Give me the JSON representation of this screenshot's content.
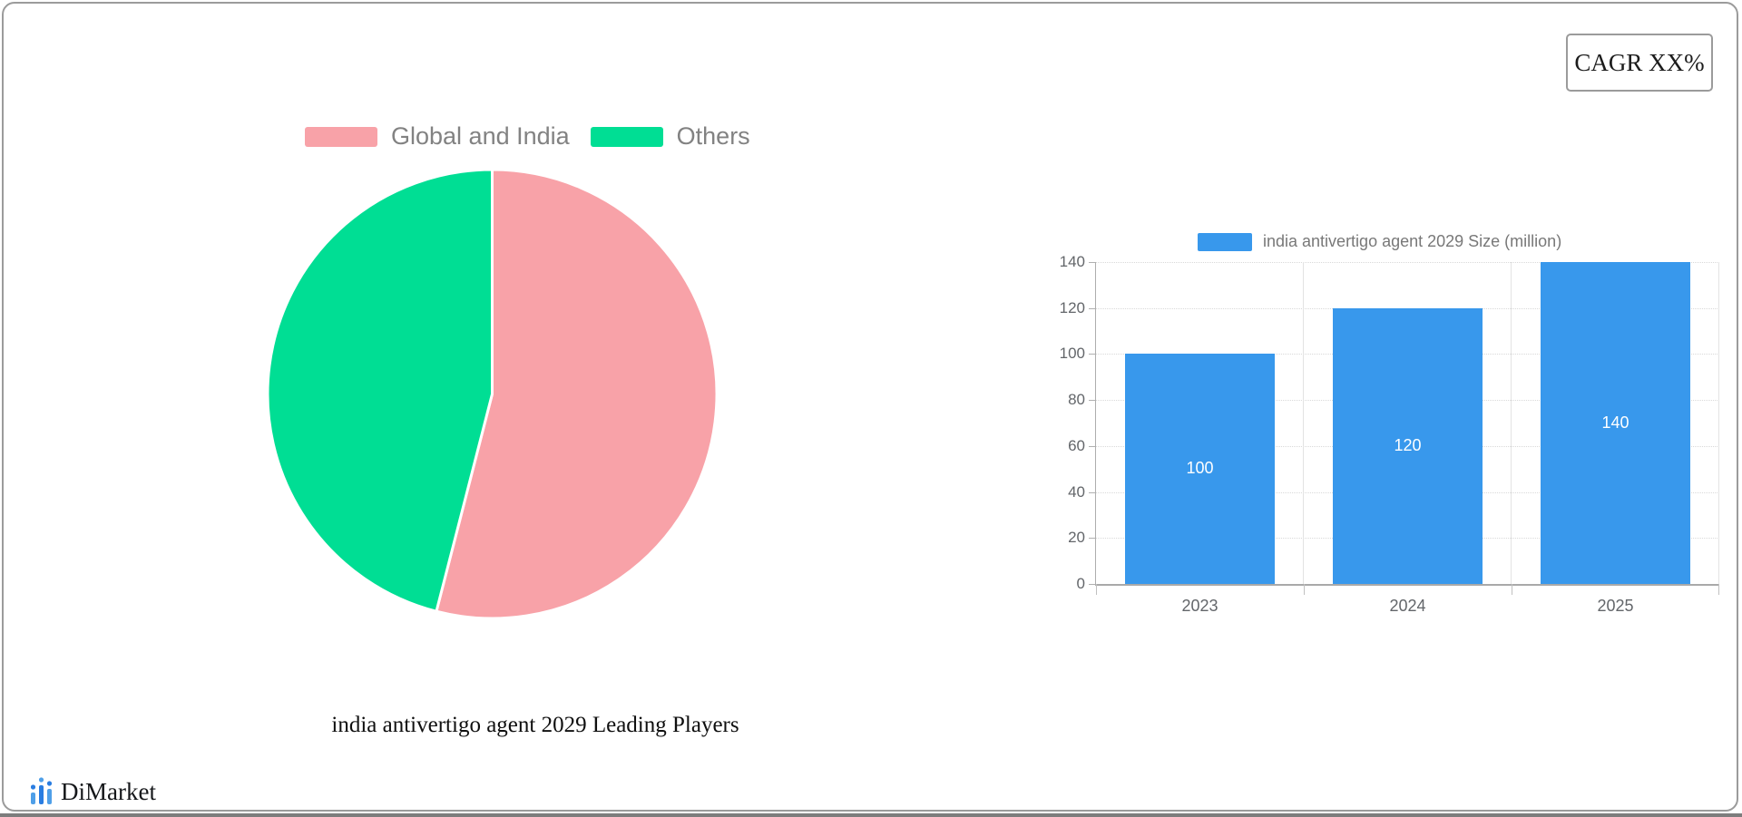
{
  "header": {
    "cagr_label": "CAGR XX%"
  },
  "branding": {
    "logo_text": "DiMarket",
    "logo_icon": "bar-chart-icon"
  },
  "colors": {
    "pie_slice_1": "#f8a2a8",
    "pie_slice_2": "#00de94",
    "bar_fill": "#3898ec",
    "card_border": "#9b9b9b",
    "legend_text": "#828282",
    "axis_text": "#63666a",
    "bar_value_text": "#ffffff"
  },
  "chart_data": [
    {
      "type": "pie",
      "title": "india antivertigo agent 2029 Leading Players",
      "labels": [
        "Global and India",
        "Others"
      ],
      "values": [
        54,
        46
      ],
      "colors": [
        "#f8a2a8",
        "#00de94"
      ],
      "legend_position": "top",
      "start_angle_deg": 0,
      "direction": "clockwise",
      "divider_color": "#ffffff"
    },
    {
      "type": "bar",
      "categories": [
        "2023",
        "2024",
        "2025"
      ],
      "series": [
        {
          "name": "india antivertigo agent 2029 Size (million)",
          "values": [
            100,
            120,
            140
          ]
        }
      ],
      "value_labels": [
        "100",
        "120",
        "140"
      ],
      "ylim": [
        0,
        140
      ],
      "ytick_step": 20,
      "ytick_labels": [
        "0",
        "20",
        "40",
        "60",
        "80",
        "100",
        "120",
        "140"
      ],
      "bar_color": "#3898ec",
      "grid": true,
      "legend_position": "top"
    }
  ]
}
